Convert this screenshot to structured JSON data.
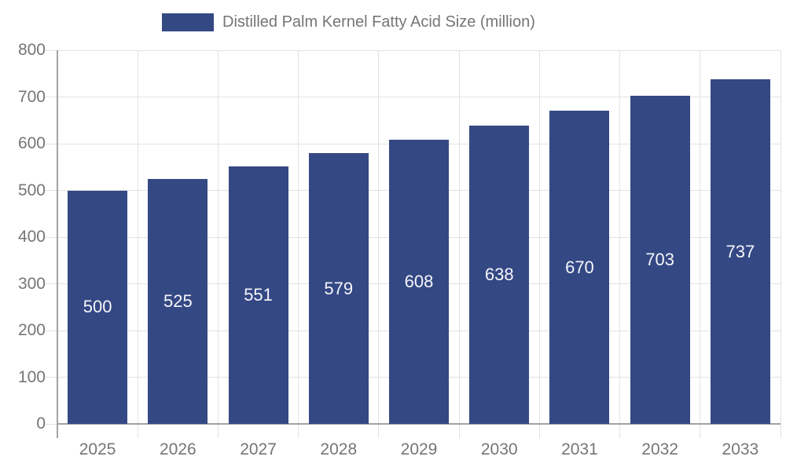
{
  "chart_data": {
    "type": "bar",
    "title": "",
    "categories": [
      "2025",
      "2026",
      "2027",
      "2028",
      "2029",
      "2030",
      "2031",
      "2032",
      "2033"
    ],
    "series": [
      {
        "name": "Distilled Palm Kernel Fatty Acid Size (million)",
        "values": [
          500,
          525,
          551,
          579,
          608,
          638,
          670,
          703,
          737
        ]
      }
    ],
    "xlabel": "",
    "ylabel": "",
    "ylim": [
      0,
      800
    ],
    "yticks": [
      0,
      100,
      200,
      300,
      400,
      500,
      600,
      700,
      800
    ],
    "grid": true,
    "legend_position": "top",
    "value_labels": "inside-center",
    "colors": {
      "bar": "#344884",
      "value_label": "#f5f6fa",
      "axis_text": "#757575",
      "legend_text": "#757575",
      "gridline": "#e2e2e2",
      "axis_line": "#a3a3a3",
      "background": "#ffffff"
    }
  }
}
